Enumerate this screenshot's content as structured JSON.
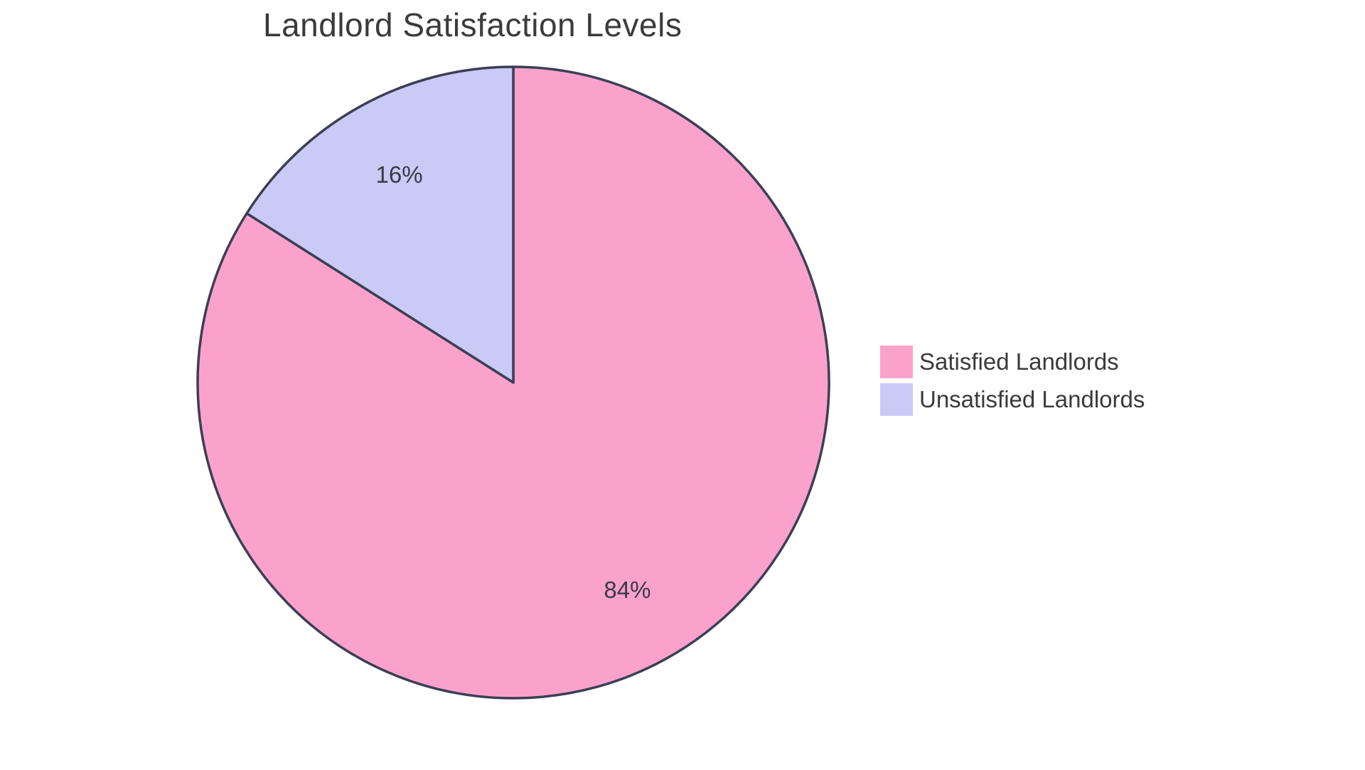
{
  "page": {
    "background": "#ffffff"
  },
  "chart_data": {
    "type": "pie",
    "title": "Landlord Satisfaction Levels",
    "labels": [
      "Satisfied Landlords",
      "Unsatisfied Landlords"
    ],
    "values": [
      84,
      16
    ],
    "percent_labels": [
      "84%",
      "16%"
    ],
    "colors": [
      "#FBA2CC",
      "#C9CAF6"
    ],
    "slice_border_color": "#3C3F54",
    "title_color": "#3B3B3B",
    "label_text_color": "#373B47",
    "legend_position": "right",
    "start_angle": "top",
    "direction": "clockwise"
  }
}
